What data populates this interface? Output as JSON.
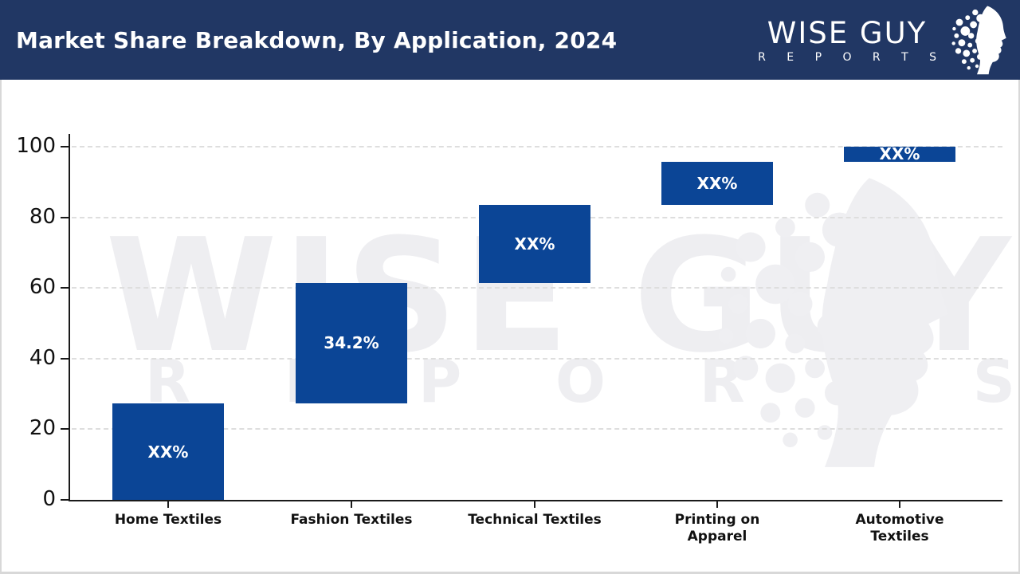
{
  "header": {
    "title": "Market Share Breakdown, By Application, 2024",
    "bg_color": "#213764",
    "logo": {
      "line1": "WISE GUY",
      "line2": "REPORTS"
    }
  },
  "watermark": {
    "line1": "WISE GUY",
    "line2": "REPORTS"
  },
  "chart_data": {
    "type": "bar",
    "subtype": "waterfall",
    "title": "Market Share Breakdown, By Application, 2024",
    "xlabel": "",
    "ylabel": "",
    "ylim": [
      0,
      105
    ],
    "yticks": [
      0,
      20,
      40,
      60,
      80,
      100
    ],
    "grid": "horizontal-dashed",
    "legend": "none",
    "bar_color": "#0b4596",
    "categories": [
      "Home Textiles",
      "Fashion Textiles",
      "Technical Textiles",
      "Printing on\nApparel",
      "Automotive\nTextiles"
    ],
    "values": [
      27.3,
      34.2,
      22.1,
      12.2,
      4.2
    ],
    "segments": [
      {
        "category": "Home Textiles",
        "start": 0,
        "end": 27.3,
        "label": "XX%"
      },
      {
        "category": "Fashion Textiles",
        "start": 27.3,
        "end": 61.5,
        "label": "34.2%"
      },
      {
        "category": "Technical Textiles",
        "start": 61.5,
        "end": 83.6,
        "label": "XX%"
      },
      {
        "category": "Printing on\nApparel",
        "start": 83.6,
        "end": 95.8,
        "label": "XX%"
      },
      {
        "category": "Automotive\nTextiles",
        "start": 95.8,
        "end": 100,
        "label": "XX%"
      }
    ]
  }
}
